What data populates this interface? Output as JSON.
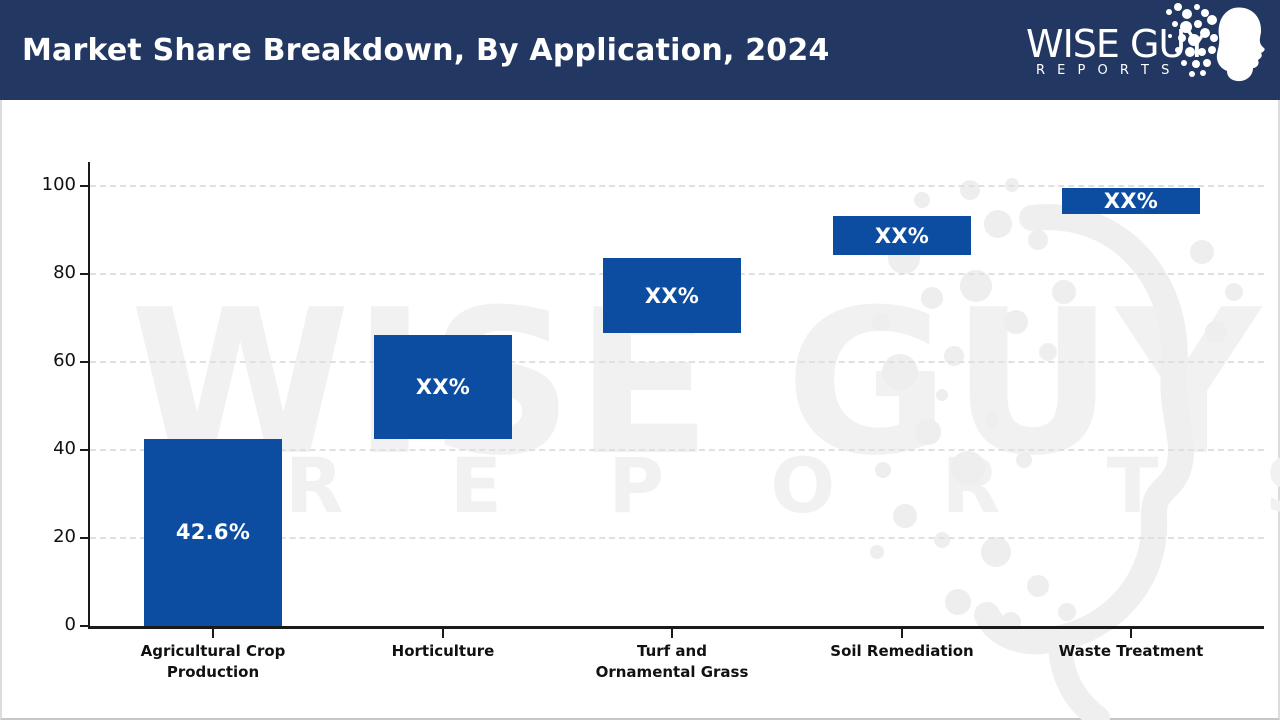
{
  "header": {
    "title": "Market Share Breakdown, By Application, 2024",
    "logo_line1": "WISE GUY",
    "logo_line2": "R E P O R T S"
  },
  "watermark": {
    "line1": "WISE GUY",
    "line2": "R E P O R T S"
  },
  "chart_data": {
    "type": "bar",
    "variant": "floating-waterfall-segments",
    "title": "Market Share Breakdown, By Application, 2024",
    "xlabel": "",
    "ylabel": "",
    "ylim": [
      0,
      100
    ],
    "yticks": [
      0,
      20,
      40,
      60,
      80,
      100
    ],
    "grid": "horizontal dashed",
    "legend": "none",
    "bar_color": "#0c4da1",
    "label_color": "#ffffff",
    "categories": [
      "Agricultural Crop Production",
      "Horticulture",
      "Turf and Ornamental Grass",
      "Soil Remediation",
      "Waste Treatment"
    ],
    "category_lines": [
      [
        "Agricultural Crop",
        "Production"
      ],
      [
        "Horticulture"
      ],
      [
        "Turf and",
        "Ornamental Grass"
      ],
      [
        "Soil Remediation"
      ],
      [
        "Waste Treatment"
      ]
    ],
    "value_labels": [
      "42.6%",
      "XX%",
      "XX%",
      "XX%",
      "XX%"
    ],
    "values": [
      42.6,
      23.6,
      17.1,
      8.9,
      6.1
    ],
    "segments": [
      {
        "category": "Agricultural Crop Production",
        "label": "42.6%",
        "start": 0,
        "end": 42.6
      },
      {
        "category": "Horticulture",
        "label": "XX%",
        "start": 42.6,
        "end": 66.2
      },
      {
        "category": "Turf and Ornamental Grass",
        "label": "XX%",
        "start": 66.6,
        "end": 83.7
      },
      {
        "category": "Soil Remediation",
        "label": "XX%",
        "start": 84.3,
        "end": 93.2
      },
      {
        "category": "Waste Treatment",
        "label": "XX%",
        "start": 93.6,
        "end": 99.7
      }
    ]
  },
  "colors": {
    "header_bg": "#223862",
    "bar": "#0c4da1",
    "watermark": "#f1f1f1",
    "grid": "#e0e0e0",
    "axis": "#1a1a1a"
  }
}
